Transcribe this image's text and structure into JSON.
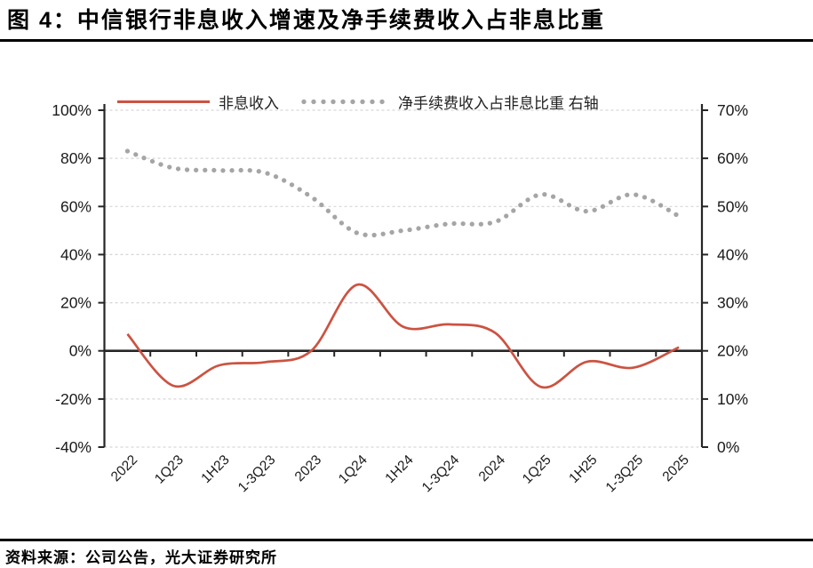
{
  "figure": {
    "title": "图 4：中信银行非息收入增速及净手续费收入占非息比重"
  },
  "footer": {
    "source": "资料来源：公司公告，光大证券研究所"
  },
  "colors": {
    "red_line": "#cb5342",
    "dotted_line": "#a5a5a5",
    "grid": "#d6d6d6",
    "axis": "#262626",
    "text": "#1a1a1a"
  },
  "chart_data": {
    "type": "line",
    "title": "图 4：中信银行非息收入增速及净手续费收入占非息比重",
    "categories": [
      "2022",
      "1Q23",
      "1H23",
      "1-3Q23",
      "2023",
      "1Q24",
      "1H24",
      "1-3Q24",
      "2024",
      "1Q25",
      "1H25",
      "1-3Q25",
      "2025"
    ],
    "series": [
      {
        "name": "非息收入",
        "axis": "left",
        "style": "solid",
        "color": "#cb5342",
        "unit": "%",
        "values": [
          7,
          -14.5,
          -6,
          -4.7,
          0,
          27.5,
          10,
          11,
          7.5,
          -15,
          -4.5,
          -7,
          1.5
        ]
      },
      {
        "name": "净手续费收入占非息比重 右轴",
        "axis": "right",
        "style": "dotted",
        "color": "#a5a5a5",
        "unit": "%",
        "values": [
          61.5,
          58,
          57.5,
          57,
          52,
          44.5,
          45,
          46.4,
          46.8,
          52.5,
          49,
          52.5,
          48
        ]
      }
    ],
    "left_axis": {
      "min": -40,
      "max": 100,
      "step": 20,
      "tick_suffix": "%",
      "ticks": [
        "100%",
        "80%",
        "60%",
        "40%",
        "20%",
        "0%",
        "-20%",
        "-40%"
      ]
    },
    "right_axis": {
      "min": 0,
      "max": 70,
      "step": 10,
      "tick_suffix": "%",
      "ticks": [
        "70%",
        "60%",
        "50%",
        "40%",
        "30%",
        "20%",
        "10%",
        "0%"
      ]
    },
    "legend_position": "top",
    "grid": "horizontal-dashed",
    "smoothing": "spline"
  }
}
